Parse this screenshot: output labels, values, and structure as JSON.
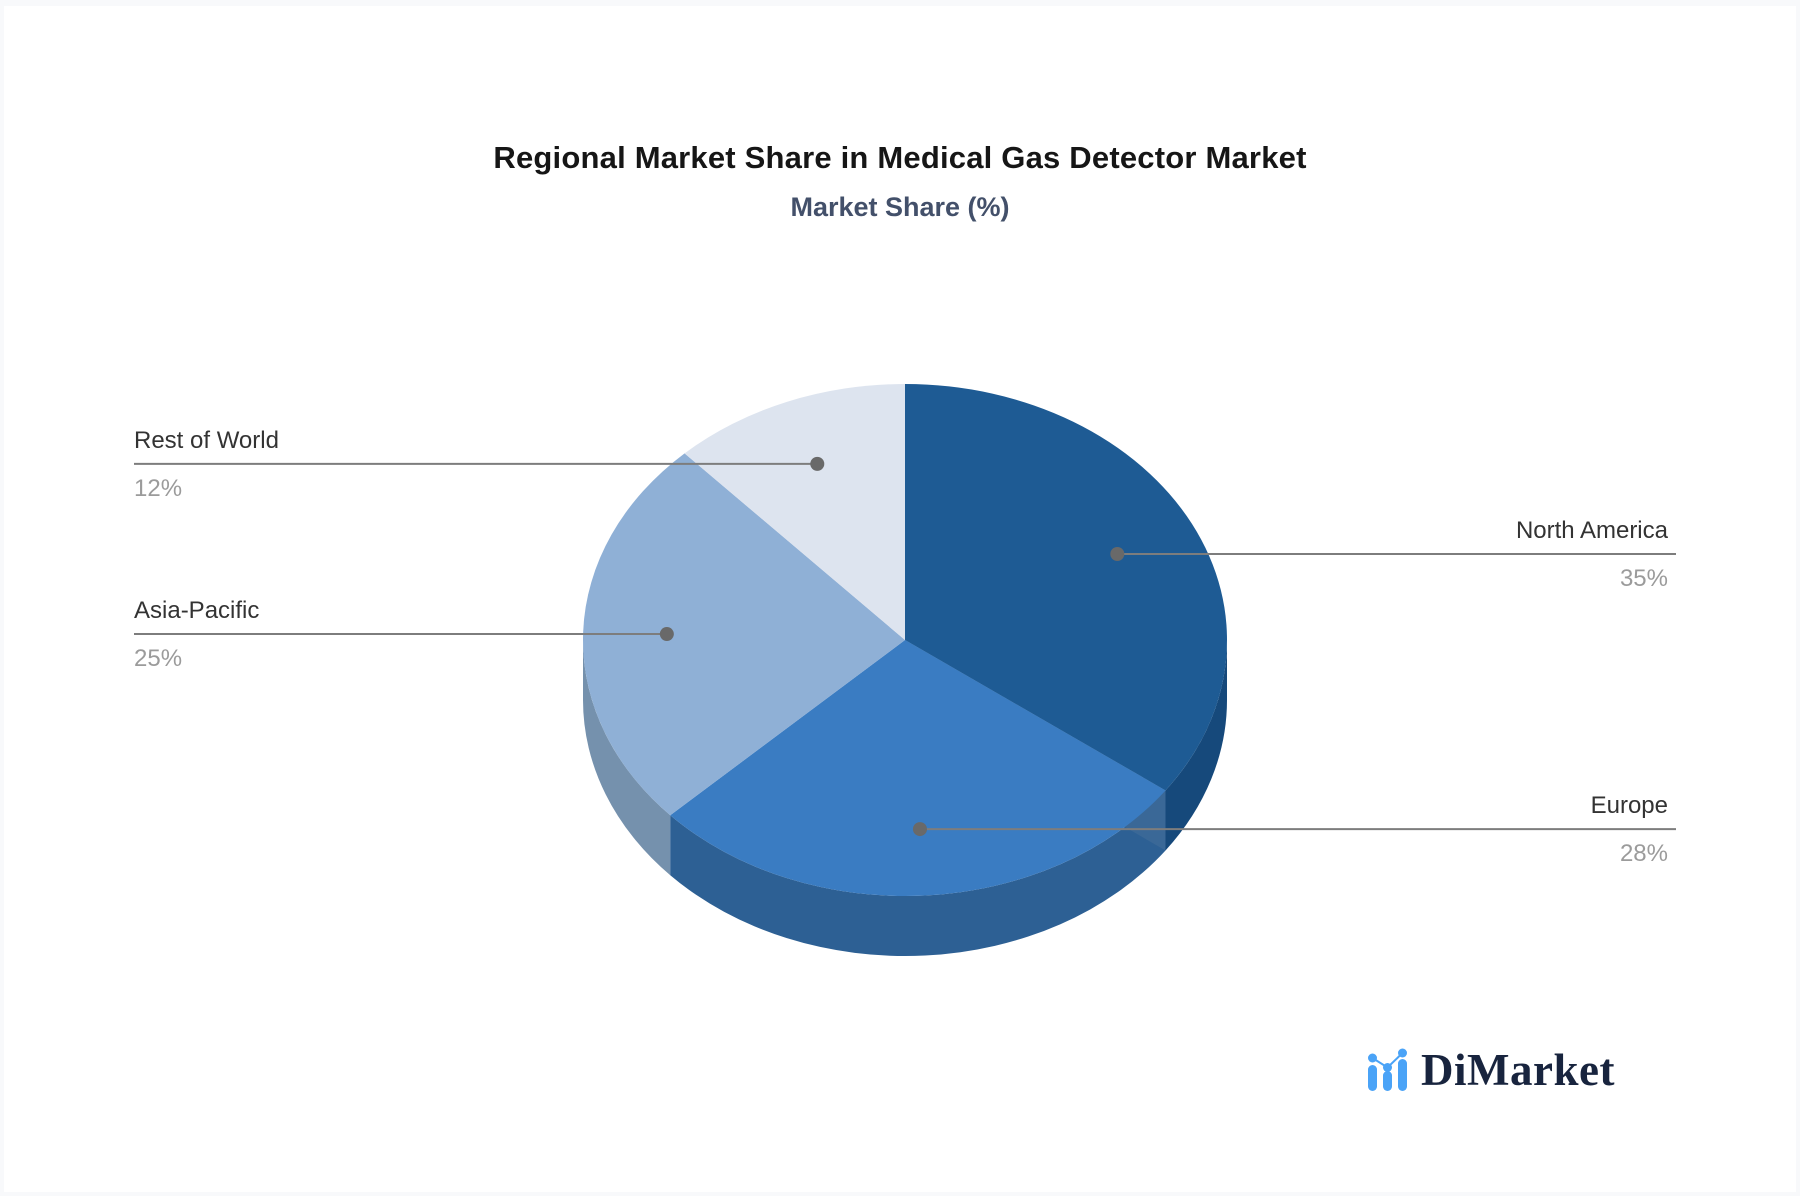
{
  "chart_data": {
    "type": "pie",
    "title": "Regional Market Share in Medical Gas Detector Market",
    "subtitle": "Market Share (%)",
    "unit": "%",
    "effect": "3d",
    "start_angle_deg": 90,
    "direction": "clockwise",
    "legend_position": "callout-labels",
    "grid": false,
    "slices": [
      {
        "label": "North America",
        "value": 35,
        "display": "35%",
        "color": "#1e5b94",
        "side_color": "#16497b",
        "cut_face_color": "#3a6897",
        "callout_side": "right"
      },
      {
        "label": "Europe",
        "value": 28,
        "display": "28%",
        "color": "#3a7cc2",
        "side_color": "#2d6094",
        "callout_side": "right"
      },
      {
        "label": "Asia-Pacific",
        "value": 25,
        "display": "25%",
        "color": "#8fb0d6",
        "side_color": "#7591ad",
        "callout_side": "left"
      },
      {
        "label": "Rest of World",
        "value": 12,
        "display": "12%",
        "color": "#dde4ef",
        "side_color": "#b9c3d4",
        "callout_side": "left"
      }
    ],
    "callout_line_color": "#7d7d7d",
    "callout_dot_color": "#696969",
    "label_color": "#333333",
    "value_color": "#9b9b9b"
  },
  "brand": {
    "name": "DiMarket",
    "icon": "bar-chart-with-trend-dots-icon",
    "icon_color": "#4aa3f7",
    "text_color": "#18243e"
  }
}
